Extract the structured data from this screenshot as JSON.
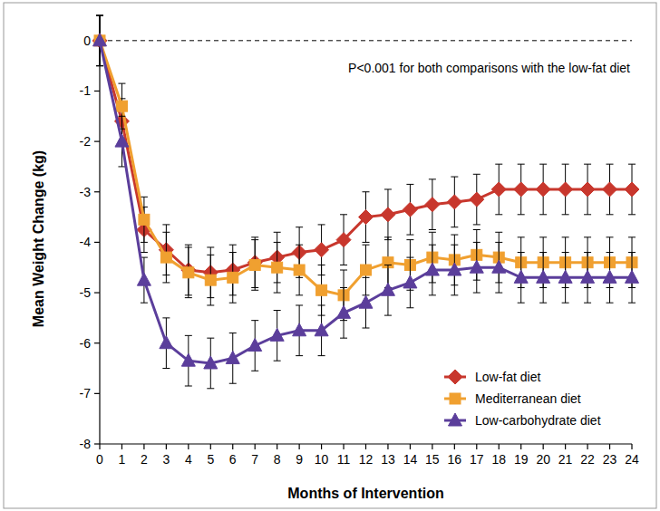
{
  "chart_data": {
    "type": "line",
    "annotation": "P<0.001 for both comparisons with the low-fat diet",
    "x_label": "Months of Intervention",
    "y_label": "Mean Weight Change (kg)",
    "x": [
      0,
      1,
      2,
      3,
      4,
      5,
      6,
      7,
      8,
      9,
      10,
      11,
      12,
      13,
      14,
      15,
      16,
      17,
      18,
      19,
      20,
      21,
      22,
      23,
      24
    ],
    "xlim": [
      0,
      24
    ],
    "xticks": [
      0,
      1,
      2,
      3,
      4,
      5,
      6,
      7,
      8,
      9,
      10,
      11,
      12,
      13,
      14,
      15,
      16,
      17,
      18,
      19,
      20,
      21,
      22,
      23,
      24
    ],
    "ylim": [
      -8,
      0.5
    ],
    "yticks": [
      0,
      -1,
      -2,
      -3,
      -4,
      -5,
      -6,
      -7,
      -8
    ],
    "reference_line": 0,
    "grid": false,
    "legend": "lower right",
    "series": [
      {
        "name": "Low-fat diet",
        "color": "#c8372d",
        "marker": "diamond",
        "values": [
          0,
          -1.6,
          -3.75,
          -4.15,
          -4.55,
          -4.6,
          -4.55,
          -4.4,
          -4.3,
          -4.2,
          -4.15,
          -3.95,
          -3.5,
          -3.45,
          -3.35,
          -3.25,
          -3.2,
          -3.15,
          -2.95,
          -2.95,
          -2.95,
          -2.95,
          -2.95,
          -2.95,
          -2.95
        ],
        "errors": [
          0.5,
          0.45,
          0.45,
          0.5,
          0.5,
          0.5,
          0.5,
          0.5,
          0.5,
          0.5,
          0.5,
          0.5,
          0.5,
          0.5,
          0.5,
          0.5,
          0.5,
          0.5,
          0.5,
          0.5,
          0.5,
          0.5,
          0.5,
          0.5,
          0.5
        ]
      },
      {
        "name": "Mediterranean diet",
        "color": "#f0a030",
        "marker": "square",
        "values": [
          0,
          -1.3,
          -3.55,
          -4.3,
          -4.6,
          -4.75,
          -4.7,
          -4.45,
          -4.5,
          -4.55,
          -4.95,
          -5.05,
          -4.55,
          -4.4,
          -4.45,
          -4.3,
          -4.35,
          -4.25,
          -4.3,
          -4.4,
          -4.4,
          -4.4,
          -4.4,
          -4.4,
          -4.4
        ],
        "errors": [
          0.5,
          0.45,
          0.45,
          0.5,
          0.5,
          0.5,
          0.5,
          0.5,
          0.5,
          0.5,
          0.5,
          0.5,
          0.5,
          0.5,
          0.5,
          0.5,
          0.5,
          0.5,
          0.5,
          0.5,
          0.5,
          0.5,
          0.5,
          0.5,
          0.5
        ]
      },
      {
        "name": "Low-carbohydrate diet",
        "color": "#5b3e9b",
        "marker": "triangle",
        "values": [
          0,
          -2.0,
          -4.75,
          -6.0,
          -6.35,
          -6.4,
          -6.3,
          -6.05,
          -5.85,
          -5.75,
          -5.75,
          -5.4,
          -5.2,
          -4.95,
          -4.8,
          -4.55,
          -4.55,
          -4.5,
          -4.5,
          -4.7,
          -4.7,
          -4.7,
          -4.7,
          -4.7,
          -4.7
        ],
        "errors": [
          0.5,
          0.5,
          0.45,
          0.5,
          0.5,
          0.5,
          0.5,
          0.5,
          0.5,
          0.5,
          0.5,
          0.5,
          0.5,
          0.5,
          0.5,
          0.5,
          0.5,
          0.5,
          0.5,
          0.5,
          0.5,
          0.5,
          0.5,
          0.5,
          0.5
        ]
      }
    ]
  }
}
